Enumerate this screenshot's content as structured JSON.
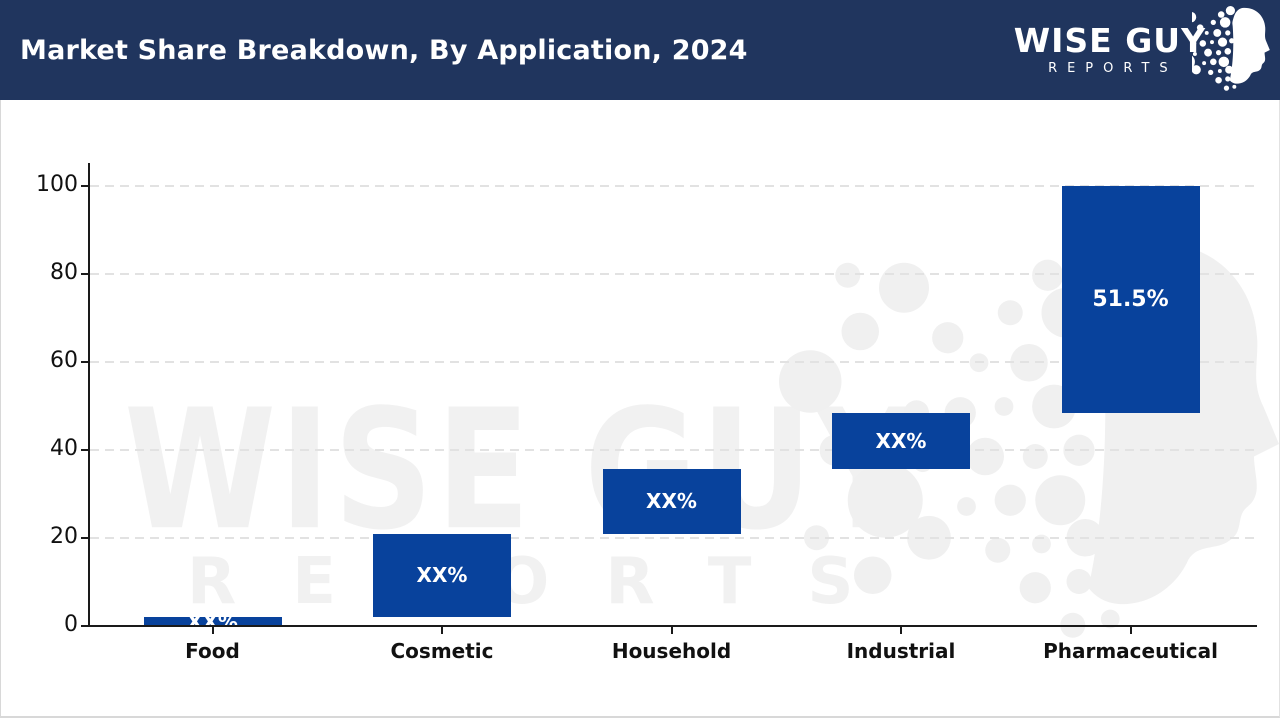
{
  "header": {
    "title": "Market Share Breakdown, By Application, 2024",
    "background": "#20355e",
    "logo": {
      "line1": "WISE GUY",
      "line2": "REPORTS"
    }
  },
  "watermark": {
    "line1": "WISE GUY",
    "line2": "REPORTS"
  },
  "chart_data": {
    "type": "bar",
    "subtype": "waterfall-floating-bars",
    "title": "Market Share Breakdown, By Application, 2024",
    "categories": [
      "Food",
      "Cosmetic",
      "Household",
      "Industrial",
      "Pharmaceutical"
    ],
    "series": [
      {
        "category": "Food",
        "start": 0,
        "end": 2,
        "label": "XX%"
      },
      {
        "category": "Cosmetic",
        "start": 2,
        "end": 21,
        "label": "XX%"
      },
      {
        "category": "Household",
        "start": 21,
        "end": 35.7,
        "label": "XX%"
      },
      {
        "category": "Industrial",
        "start": 35.7,
        "end": 48.5,
        "label": "XX%"
      },
      {
        "category": "Pharmaceutical",
        "start": 48.5,
        "end": 100,
        "label": "51.5%"
      }
    ],
    "yticks": [
      0,
      20,
      40,
      60,
      80,
      100
    ],
    "ylim": [
      0,
      105
    ],
    "xlabel": "",
    "ylabel": "",
    "grid": true,
    "grid_style": "dashed",
    "legend": false,
    "bar_color": "#08429c",
    "bar_label_color": "#ffffff",
    "axis_color": "#1a1a1a",
    "grid_color": "#e2e2e2"
  }
}
